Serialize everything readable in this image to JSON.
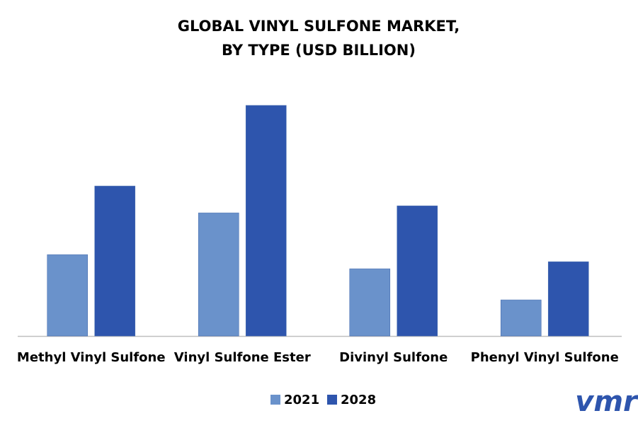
{
  "chart_data": {
    "type": "bar",
    "title": [
      "GLOBAL VINYL SULFONE MARKET,",
      "BY TYPE (USD BILLION)"
    ],
    "categories": [
      "Methyl Vinyl Sulfone",
      "Vinyl Sulfone Ester",
      "Divinyl Sulfone",
      "Phenyl Vinyl Sulfone"
    ],
    "series": [
      {
        "name": "2021",
        "color": "#6a92cb",
        "values": [
          115,
          174,
          95,
          51
        ]
      },
      {
        "name": "2028",
        "color": "#2e55ad",
        "values": [
          212,
          326,
          184,
          105
        ]
      }
    ],
    "ylim": [
      0,
      350
    ],
    "logo": "vmr"
  }
}
